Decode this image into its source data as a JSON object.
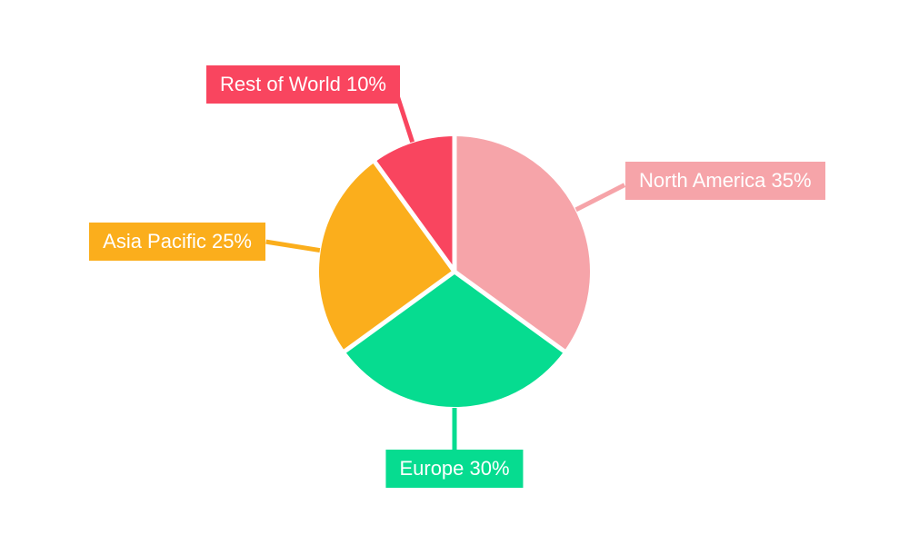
{
  "page": {
    "background_color": "#ffffff",
    "label_text_color": "#ffffff"
  },
  "chart_data": {
    "type": "pie",
    "title": "",
    "direction": "clockwise",
    "start_angle_deg": 0,
    "legend_position": "none",
    "label_style": "callout boxes with radial leader lines, box fill matches slice color",
    "separator_color": "#ffffff",
    "categories": [
      "North America",
      "Europe",
      "Asia Pacific",
      "Rest of World"
    ],
    "values": [
      35,
      30,
      25,
      10
    ],
    "slices": [
      {
        "label": "North America",
        "value": 35,
        "display": "North America 35%",
        "color": "#F6A4A9"
      },
      {
        "label": "Europe",
        "value": 30,
        "display": "Europe 30%",
        "color": "#06DC90"
      },
      {
        "label": "Asia Pacific",
        "value": 25,
        "display": "Asia Pacific 25%",
        "color": "#FBAE1C"
      },
      {
        "label": "Rest of World",
        "value": 10,
        "display": "Rest of World 10%",
        "color": "#F9455F"
      }
    ]
  }
}
